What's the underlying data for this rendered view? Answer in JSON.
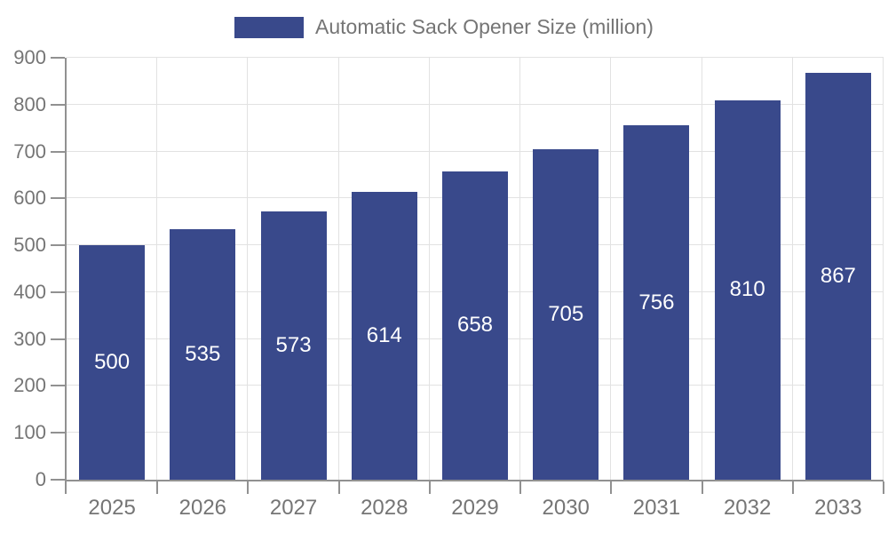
{
  "legend": {
    "label": "Automatic Sack Opener Size (million)",
    "swatch_color": "#39498B"
  },
  "chart_data": {
    "type": "bar",
    "title": "Automatic Sack Opener Size (million)",
    "categories": [
      "2025",
      "2026",
      "2027",
      "2028",
      "2029",
      "2030",
      "2031",
      "2032",
      "2033"
    ],
    "values": [
      500,
      535,
      573,
      614,
      658,
      705,
      756,
      810,
      867
    ],
    "series": [
      {
        "name": "Automatic Sack Opener Size (million)",
        "values": [
          500,
          535,
          573,
          614,
          658,
          705,
          756,
          810,
          867
        ]
      }
    ],
    "xlabel": "",
    "ylabel": "",
    "ylim": [
      0,
      900
    ],
    "yticks": [
      0,
      100,
      200,
      300,
      400,
      500,
      600,
      700,
      800,
      900
    ],
    "grid": true,
    "legend_position": "top-center",
    "value_labels": "inside-center"
  },
  "colors": {
    "bar": "#39498B",
    "grid_line": "#e2e2e2",
    "axis_line": "#919191",
    "tick_label": "#757575",
    "legend_text": "#757575",
    "value_label": "#ffffff",
    "background": "#ffffff"
  }
}
